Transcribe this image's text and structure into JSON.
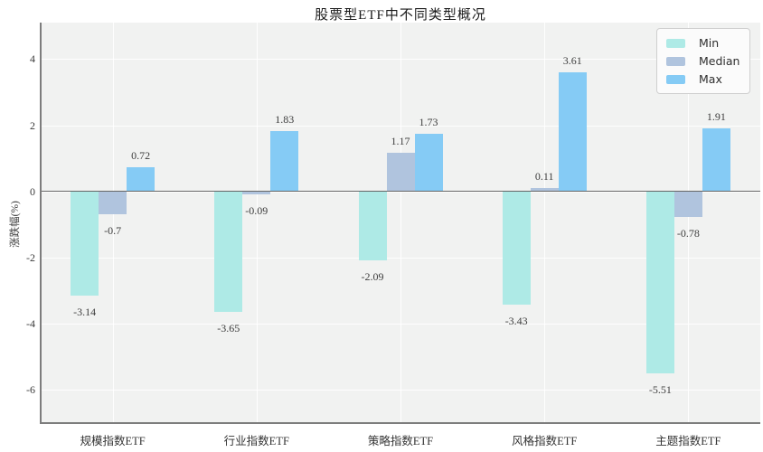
{
  "title": "股票型ETF中不同类型概况",
  "chart_data": {
    "type": "bar",
    "title": "股票型ETF中不同类型概况",
    "xlabel": "",
    "ylabel": "涨跌幅(%)",
    "categories": [
      "规模指数ETF",
      "行业指数ETF",
      "策略指数ETF",
      "风格指数ETF",
      "主题指数ETF"
    ],
    "series": [
      {
        "name": "Min",
        "color": "#aeeae6",
        "values": [
          -3.14,
          -3.65,
          -2.09,
          -3.43,
          -5.51
        ],
        "labels": [
          "-3.14",
          "-3.65",
          "-2.09",
          "-3.43",
          "-5.51"
        ]
      },
      {
        "name": "Median",
        "color": "#b0c4de",
        "values": [
          -0.7,
          -0.09,
          1.17,
          0.11,
          -0.78
        ],
        "labels": [
          "-0.7",
          "-0.09",
          "1.17",
          "0.11",
          "-0.78"
        ]
      },
      {
        "name": "Max",
        "color": "#85cbf5",
        "values": [
          0.72,
          1.83,
          1.73,
          3.61,
          1.91
        ],
        "labels": [
          "0.72",
          "1.83",
          "1.73",
          "3.61",
          "1.91"
        ]
      }
    ],
    "yticks": [
      4,
      2,
      0,
      -2,
      -4,
      -6
    ],
    "ylim": [
      -7,
      5.1
    ],
    "grid": true,
    "legend_position": "upper right",
    "plot_bg_color": "#f1f2f1",
    "zero_line_color": "#666666"
  }
}
